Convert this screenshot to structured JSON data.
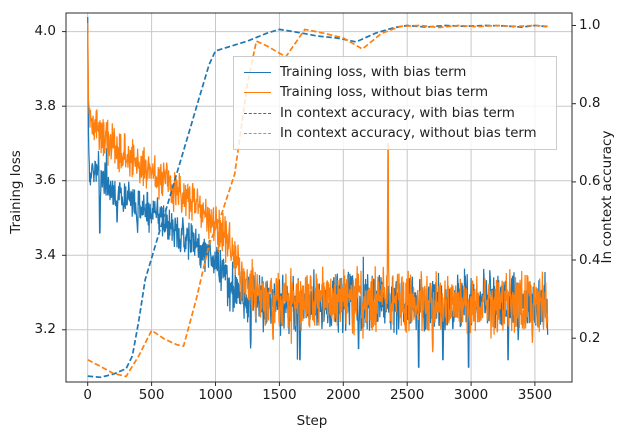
{
  "chart_data": {
    "type": "line",
    "title": "",
    "xlabel": "Step",
    "ylabel_left": "Training loss",
    "ylabel_right": "In context accuracy",
    "grid": true,
    "legend_position": "upper center-right",
    "x_axis": {
      "tick_labels": [
        "0",
        "500",
        "1000",
        "1500",
        "2000",
        "2500",
        "3000",
        "3500"
      ],
      "tick_values": [
        0,
        500,
        1000,
        1500,
        2000,
        2500,
        3000,
        3500
      ],
      "lim": [
        -170,
        3790
      ],
      "data_max": 3600
    },
    "y_axis_left": {
      "tick_labels": [
        "4.0",
        "3.8",
        "3.6",
        "3.4",
        "3.2"
      ],
      "tick_values": [
        4.0,
        3.8,
        3.6,
        3.4,
        3.2
      ],
      "lim": [
        3.06,
        4.05
      ]
    },
    "y_axis_right": {
      "tick_labels": [
        "1.0",
        "0.8",
        "0.6",
        "0.4",
        "0.2"
      ],
      "tick_values": [
        1.0,
        0.8,
        0.6,
        0.4,
        0.2
      ],
      "lim": [
        0.088,
        1.032
      ]
    },
    "colors": {
      "blue": "#1f77b4",
      "orange": "#ff7f0e",
      "grid": "#c8c8c8",
      "spine": "#2b2b2b",
      "text": "#1a1a1a"
    },
    "series": [
      {
        "name": "training-loss-with-bias",
        "label": "Training loss, with bias term",
        "color": "#1f77b4",
        "line_style": "solid",
        "axis": "left",
        "kind": "noisy",
        "trend": [
          [
            0,
            4.02
          ],
          [
            6,
            3.7
          ],
          [
            15,
            3.6
          ],
          [
            60,
            3.64
          ],
          [
            150,
            3.595
          ],
          [
            250,
            3.565
          ],
          [
            350,
            3.545
          ],
          [
            450,
            3.525
          ],
          [
            550,
            3.505
          ],
          [
            650,
            3.48
          ],
          [
            750,
            3.455
          ],
          [
            850,
            3.43
          ],
          [
            950,
            3.4
          ],
          [
            1050,
            3.355
          ],
          [
            1150,
            3.305
          ],
          [
            1250,
            3.285
          ],
          [
            1500,
            3.272
          ],
          [
            2000,
            3.28
          ],
          [
            2500,
            3.272
          ],
          [
            3000,
            3.278
          ],
          [
            3600,
            3.272
          ]
        ],
        "noise_amp": [
          [
            0,
            0.02
          ],
          [
            30,
            0.045
          ],
          [
            200,
            0.05
          ],
          [
            900,
            0.052
          ],
          [
            1150,
            0.065
          ],
          [
            1300,
            0.078
          ],
          [
            3600,
            0.078
          ]
        ],
        "spikes": [
          [
            95,
            3.46
          ],
          [
            230,
            3.49
          ],
          [
            390,
            3.46
          ],
          [
            1275,
            3.15
          ],
          [
            1660,
            3.12
          ],
          [
            2120,
            3.15
          ],
          [
            2590,
            3.1
          ],
          [
            2780,
            3.12
          ],
          [
            2980,
            3.1
          ],
          [
            3290,
            3.12
          ]
        ]
      },
      {
        "name": "training-loss-without-bias",
        "label": "Training loss, without bias term",
        "color": "#ff7f0e",
        "line_style": "solid",
        "axis": "left",
        "kind": "noisy",
        "trend": [
          [
            0,
            4.02
          ],
          [
            6,
            3.82
          ],
          [
            15,
            3.78
          ],
          [
            80,
            3.735
          ],
          [
            150,
            3.705
          ],
          [
            250,
            3.675
          ],
          [
            350,
            3.655
          ],
          [
            450,
            3.635
          ],
          [
            550,
            3.61
          ],
          [
            650,
            3.585
          ],
          [
            750,
            3.56
          ],
          [
            850,
            3.535
          ],
          [
            950,
            3.5
          ],
          [
            1050,
            3.46
          ],
          [
            1120,
            3.425
          ],
          [
            1180,
            3.365
          ],
          [
            1250,
            3.315
          ],
          [
            1350,
            3.285
          ],
          [
            2000,
            3.278
          ],
          [
            2500,
            3.275
          ],
          [
            3000,
            3.27
          ],
          [
            3600,
            3.278
          ]
        ],
        "noise_amp": [
          [
            0,
            0.02
          ],
          [
            30,
            0.05
          ],
          [
            300,
            0.058
          ],
          [
            900,
            0.05
          ],
          [
            1150,
            0.06
          ],
          [
            1300,
            0.082
          ],
          [
            3600,
            0.082
          ]
        ],
        "spikes": [
          [
            1450,
            3.175
          ],
          [
            2350,
            3.7
          ],
          [
            2700,
            3.14
          ],
          [
            3480,
            3.165
          ]
        ]
      },
      {
        "name": "in-context-accuracy-with-bias",
        "label": "In context accuracy, with bias term",
        "color": "#1f77b4",
        "line_style": "dashed",
        "axis": "right",
        "kind": "points",
        "points": [
          [
            0,
            0.103
          ],
          [
            100,
            0.1
          ],
          [
            200,
            0.108
          ],
          [
            300,
            0.122
          ],
          [
            350,
            0.155
          ],
          [
            400,
            0.245
          ],
          [
            450,
            0.35
          ],
          [
            550,
            0.46
          ],
          [
            650,
            0.57
          ],
          [
            750,
            0.68
          ],
          [
            850,
            0.79
          ],
          [
            950,
            0.9
          ],
          [
            1000,
            0.935
          ],
          [
            1100,
            0.945
          ],
          [
            1250,
            0.96
          ],
          [
            1400,
            0.98
          ],
          [
            1500,
            0.99
          ],
          [
            1650,
            0.982
          ],
          [
            1800,
            0.973
          ],
          [
            1950,
            0.968
          ],
          [
            2100,
            0.958
          ],
          [
            2250,
            0.98
          ],
          [
            2400,
            0.995
          ],
          [
            2500,
            1.0
          ],
          [
            2650,
            0.996
          ],
          [
            2800,
            1.0
          ],
          [
            2950,
            0.998
          ],
          [
            3100,
            1.0
          ],
          [
            3250,
            0.999
          ],
          [
            3400,
            0.996
          ],
          [
            3500,
            1.0
          ],
          [
            3600,
            0.997
          ]
        ]
      },
      {
        "name": "in-context-accuracy-without-bias",
        "label": "In context accuracy, without bias term",
        "color": "#ff7f0e",
        "line_style": "dashed",
        "axis": "right",
        "kind": "points",
        "points": [
          [
            0,
            0.145
          ],
          [
            100,
            0.128
          ],
          [
            200,
            0.11
          ],
          [
            300,
            0.102
          ],
          [
            400,
            0.155
          ],
          [
            500,
            0.22
          ],
          [
            600,
            0.198
          ],
          [
            700,
            0.183
          ],
          [
            750,
            0.18
          ],
          [
            850,
            0.3
          ],
          [
            950,
            0.44
          ],
          [
            1050,
            0.52
          ],
          [
            1150,
            0.62
          ],
          [
            1250,
            0.85
          ],
          [
            1320,
            0.96
          ],
          [
            1400,
            0.948
          ],
          [
            1550,
            0.92
          ],
          [
            1700,
            0.99
          ],
          [
            1850,
            0.98
          ],
          [
            2000,
            0.968
          ],
          [
            2150,
            0.94
          ],
          [
            2300,
            0.98
          ],
          [
            2450,
            0.998
          ],
          [
            2600,
            1.0
          ],
          [
            2750,
            0.995
          ],
          [
            2900,
            1.0
          ],
          [
            3050,
            0.997
          ],
          [
            3200,
            1.0
          ],
          [
            3350,
            0.998
          ],
          [
            3500,
            1.0
          ],
          [
            3600,
            0.998
          ]
        ]
      }
    ]
  }
}
